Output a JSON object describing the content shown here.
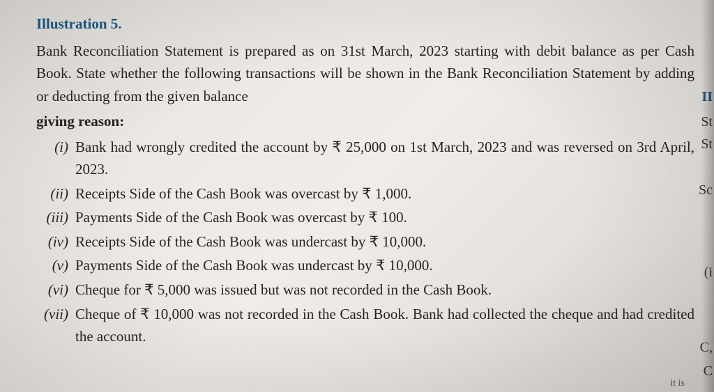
{
  "heading": "Illustration 5.",
  "intro_lines": [
    "Bank Reconciliation Statement is prepared as on 31st March, 2023 starting with debit",
    "balance as per Cash Book. State whether the following transactions will be shown in",
    "the Bank Reconciliation Statement by adding or deducting from the given balance"
  ],
  "subhead": "giving reason:",
  "items": [
    {
      "marker": "(i)",
      "text": "Bank had wrongly credited the account by ₹ 25,000 on 1st March, 2023 and was reversed on 3rd April, 2023."
    },
    {
      "marker": "(ii)",
      "text": "Receipts Side of the Cash Book was overcast by ₹ 1,000."
    },
    {
      "marker": "(iii)",
      "text": "Payments Side of the Cash Book was overcast by ₹ 100."
    },
    {
      "marker": "(iv)",
      "text": "Receipts Side of the Cash Book was undercast by ₹ 10,000."
    },
    {
      "marker": "(v)",
      "text": "Payments Side of the Cash Book was undercast by ₹ 10,000."
    },
    {
      "marker": "(vi)",
      "text": "Cheque for ₹ 5,000 was issued but was not recorded in the Cash Book."
    },
    {
      "marker": "(vii)",
      "text": "Cheque of ₹ 10,000 was not recorded in the Cash Book. Bank had collected the cheque and had credited the account."
    }
  ],
  "margin_fragments": {
    "m1": "II",
    "m2": "St",
    "m3": "St",
    "m4": "Sc",
    "m5": "(i",
    "m6": "C,",
    "m7": "C"
  },
  "footnote": "it is"
}
